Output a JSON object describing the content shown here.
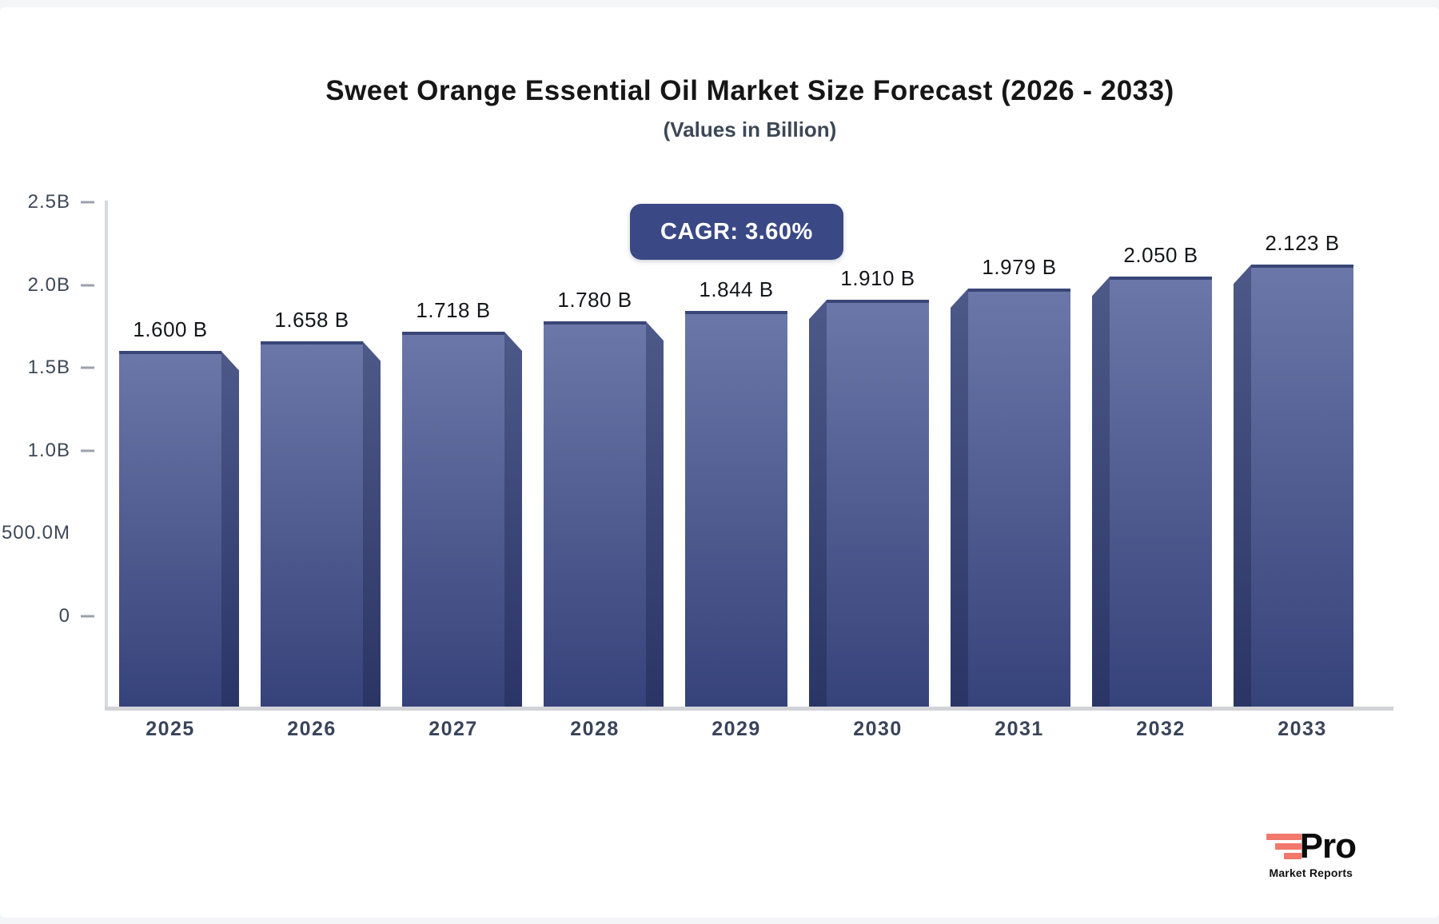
{
  "page": {
    "title": "Sweet Orange Essential Oil Market Size Forecast (2026 - 2033)",
    "subtitle": "(Values in Billion)",
    "cagr_badge": "CAGR: 3.60%"
  },
  "chart_data": {
    "type": "bar",
    "title": "Sweet Orange Essential Oil Market Size Forecast (2026 - 2033)",
    "subtitle": "(Values in Billion)",
    "annotation": "CAGR: 3.60%",
    "categories": [
      "2025",
      "2026",
      "2027",
      "2028",
      "2029",
      "2030",
      "2031",
      "2032",
      "2033"
    ],
    "values": [
      1.6,
      1.658,
      1.718,
      1.78,
      1.844,
      1.91,
      1.979,
      2.05,
      2.123
    ],
    "value_labels": [
      "1.600 B",
      "1.658 B",
      "1.718 B",
      "1.780 B",
      "1.844 B",
      "1.910 B",
      "1.979 B",
      "2.050 B",
      "2.123 B"
    ],
    "xlabel": "",
    "ylabel": "",
    "ylim": [
      0,
      2.5
    ],
    "y_ticks": [
      {
        "label": "2.5B",
        "value": 2.5,
        "dash": true
      },
      {
        "label": "2.0B",
        "value": 2.0,
        "dash": true
      },
      {
        "label": "1.5B",
        "value": 1.5,
        "dash": true
      },
      {
        "label": "1.0B",
        "value": 1.0,
        "dash": true
      },
      {
        "label": "500.0M",
        "value": 0.5,
        "dash": false
      },
      {
        "label": "0",
        "value": 0,
        "dash": true
      }
    ],
    "grid": false,
    "legend": "none",
    "colors": {
      "bar_top": "#6b77a8",
      "bar_bottom": "#36427a",
      "bar_side": "#2a3566",
      "badge_bg": "#3a4885",
      "badge_text": "#ffffff",
      "axis_line": "#d2d3d8",
      "tick_text": "#3e4857"
    }
  },
  "branding": {
    "logo_text": "Pro",
    "logo_sub": "Market Reports",
    "logo_bar_color": "#f1786b"
  }
}
